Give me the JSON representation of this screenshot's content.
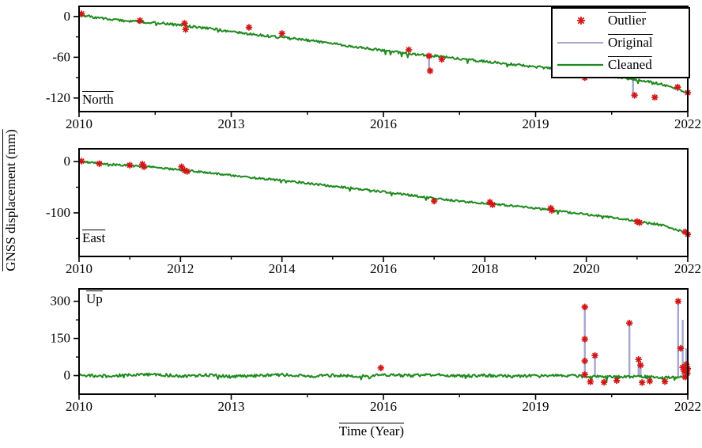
{
  "axes": {
    "ylabel": "GNSS displacement (mm)",
    "xlabel": "Time (Year)"
  },
  "colors": {
    "outlier": "#d21616",
    "original": "#a6a6d4",
    "cleaned": "#1e8a1e",
    "axis": "#000000"
  },
  "legend": {
    "items": [
      {
        "label": "Outlier"
      },
      {
        "label": "Original"
      },
      {
        "label": "Cleaned"
      }
    ]
  },
  "chart_data": [
    {
      "type": "line",
      "label": "North",
      "xlim": [
        2010,
        2022
      ],
      "ylim": [
        -140,
        15
      ],
      "yticks": [
        {
          "v": 0,
          "label": "0"
        },
        {
          "v": -60,
          "label": "-60"
        },
        {
          "v": -120,
          "label": "-120"
        }
      ],
      "yminor": [
        -30,
        -90
      ],
      "xticks": [
        {
          "v": 2010,
          "label": "2010"
        },
        {
          "v": 2013,
          "label": "2013"
        },
        {
          "v": 2016,
          "label": "2016"
        },
        {
          "v": 2019,
          "label": "2019"
        },
        {
          "v": 2022,
          "label": "2022"
        }
      ],
      "xminor": [
        2011.5,
        2014.5,
        2017.5,
        2020.5
      ],
      "noise": 1.8,
      "cleaned_anchors": [
        [
          2010,
          2
        ],
        [
          2010.5,
          -3
        ],
        [
          2011,
          -7
        ],
        [
          2011.5,
          -9
        ],
        [
          2012,
          -13
        ],
        [
          2012.5,
          -17
        ],
        [
          2013,
          -22
        ],
        [
          2013.5,
          -27
        ],
        [
          2014,
          -31
        ],
        [
          2014.5,
          -35
        ],
        [
          2015,
          -40
        ],
        [
          2015.5,
          -45
        ],
        [
          2016,
          -50
        ],
        [
          2016.5,
          -55
        ],
        [
          2017,
          -58
        ],
        [
          2017.5,
          -62
        ],
        [
          2018,
          -66
        ],
        [
          2018.5,
          -70
        ],
        [
          2019,
          -74
        ],
        [
          2019.5,
          -78
        ],
        [
          2020,
          -83
        ],
        [
          2020.5,
          -88
        ],
        [
          2021,
          -93
        ],
        [
          2021.5,
          -100
        ],
        [
          2022,
          -112
        ]
      ],
      "outliers": [
        [
          2010.05,
          4
        ],
        [
          2011.2,
          -6
        ],
        [
          2012.08,
          -10
        ],
        [
          2012.1,
          -19
        ],
        [
          2013.35,
          -16
        ],
        [
          2014.0,
          -25
        ],
        [
          2016.5,
          -49
        ],
        [
          2016.9,
          -58
        ],
        [
          2016.92,
          -80
        ],
        [
          2017.15,
          -63
        ],
        [
          2019.95,
          -71
        ],
        [
          2019.97,
          -90
        ],
        [
          2020.9,
          -86
        ],
        [
          2020.95,
          -116
        ],
        [
          2021.35,
          -119
        ],
        [
          2021.8,
          -104
        ],
        [
          2022.0,
          -112
        ]
      ],
      "original_spikes": [
        [
          2012.1,
          -11,
          -19
        ],
        [
          2016.9,
          -58,
          -80
        ],
        [
          2019.95,
          -72,
          -90
        ],
        [
          2020.92,
          -88,
          -114
        ],
        [
          2021.8,
          -100,
          -110
        ]
      ]
    },
    {
      "type": "line",
      "label": "East",
      "xlim": [
        2010,
        2022
      ],
      "ylim": [
        -185,
        25
      ],
      "yticks": [
        {
          "v": 0,
          "label": "0"
        },
        {
          "v": -100,
          "label": "-100"
        }
      ],
      "yminor": [
        -50,
        -150
      ],
      "xticks": [
        {
          "v": 2010,
          "label": "2010"
        },
        {
          "v": 2012,
          "label": "2012"
        },
        {
          "v": 2014,
          "label": "2014"
        },
        {
          "v": 2016,
          "label": "2016"
        },
        {
          "v": 2018,
          "label": "2018"
        },
        {
          "v": 2020,
          "label": "2020"
        },
        {
          "v": 2022,
          "label": "2022"
        }
      ],
      "xminor": [
        2011,
        2013,
        2015,
        2017,
        2019,
        2021
      ],
      "noise": 2.0,
      "cleaned_anchors": [
        [
          2010,
          0
        ],
        [
          2010.5,
          -4
        ],
        [
          2011,
          -8
        ],
        [
          2011.5,
          -11
        ],
        [
          2012,
          -16
        ],
        [
          2012.5,
          -21
        ],
        [
          2013,
          -27
        ],
        [
          2013.5,
          -32
        ],
        [
          2014,
          -37
        ],
        [
          2014.5,
          -42
        ],
        [
          2015,
          -48
        ],
        [
          2015.5,
          -53
        ],
        [
          2016,
          -59
        ],
        [
          2016.5,
          -65
        ],
        [
          2017,
          -72
        ],
        [
          2017.5,
          -77
        ],
        [
          2018,
          -81
        ],
        [
          2018.5,
          -86
        ],
        [
          2019,
          -91
        ],
        [
          2019.5,
          -97
        ],
        [
          2020,
          -103
        ],
        [
          2020.5,
          -109
        ],
        [
          2021,
          -116
        ],
        [
          2021.5,
          -124
        ],
        [
          2022,
          -140
        ]
      ],
      "outliers": [
        [
          2010.05,
          1
        ],
        [
          2010.4,
          -4
        ],
        [
          2011.0,
          -7
        ],
        [
          2011.25,
          -5
        ],
        [
          2011.28,
          -10
        ],
        [
          2012.02,
          -10
        ],
        [
          2012.08,
          -17
        ],
        [
          2012.13,
          -19
        ],
        [
          2017.0,
          -77
        ],
        [
          2018.1,
          -79
        ],
        [
          2018.15,
          -84
        ],
        [
          2019.3,
          -91
        ],
        [
          2019.32,
          -95
        ],
        [
          2021.0,
          -117
        ],
        [
          2021.05,
          -119
        ],
        [
          2021.95,
          -137
        ],
        [
          2022.0,
          -142
        ]
      ],
      "original_spikes": [
        [
          2011.26,
          -5,
          -10
        ],
        [
          2012.02,
          -10,
          -16
        ],
        [
          2018.13,
          -79,
          -84
        ],
        [
          2019.3,
          -91,
          -95
        ],
        [
          2021.98,
          -136,
          -143
        ]
      ]
    },
    {
      "type": "line",
      "label": "Up",
      "xlim": [
        2010,
        2022
      ],
      "ylim": [
        -75,
        350
      ],
      "yticks": [
        {
          "v": 300,
          "label": "300"
        },
        {
          "v": 150,
          "label": "150"
        },
        {
          "v": 0,
          "label": "0"
        }
      ],
      "yminor": [
        225,
        75
      ],
      "xticks": [
        {
          "v": 2010,
          "label": "2010"
        },
        {
          "v": 2013,
          "label": "2013"
        },
        {
          "v": 2016,
          "label": "2016"
        },
        {
          "v": 2019,
          "label": "2019"
        },
        {
          "v": 2022,
          "label": "2022"
        }
      ],
      "xminor": [
        2011.5,
        2014.5,
        2017.5,
        2020.5
      ],
      "noise": 6.0,
      "cleaned_anchors": [
        [
          2010,
          1
        ],
        [
          2010.5,
          -2
        ],
        [
          2011,
          3
        ],
        [
          2011.5,
          5
        ],
        [
          2012,
          -2
        ],
        [
          2012.5,
          2
        ],
        [
          2013,
          -4
        ],
        [
          2013.5,
          0
        ],
        [
          2014,
          3
        ],
        [
          2014.5,
          -2
        ],
        [
          2015,
          1
        ],
        [
          2015.5,
          -3
        ],
        [
          2016,
          2
        ],
        [
          2016.5,
          0
        ],
        [
          2017,
          3
        ],
        [
          2017.5,
          -2
        ],
        [
          2018,
          1
        ],
        [
          2018.5,
          -3
        ],
        [
          2019,
          0
        ],
        [
          2019.5,
          2
        ],
        [
          2020,
          -4
        ],
        [
          2020.5,
          -6
        ],
        [
          2021,
          -4
        ],
        [
          2021.5,
          -8
        ],
        [
          2022,
          -5
        ]
      ],
      "outliers": [
        [
          2015.95,
          31
        ],
        [
          2019.97,
          277
        ],
        [
          2019.97,
          147
        ],
        [
          2019.97,
          59
        ],
        [
          2019.97,
          4
        ],
        [
          2020.08,
          -25
        ],
        [
          2020.17,
          81
        ],
        [
          2020.35,
          -27
        ],
        [
          2020.6,
          -20
        ],
        [
          2020.85,
          212
        ],
        [
          2021.03,
          65
        ],
        [
          2021.07,
          42
        ],
        [
          2021.1,
          -28
        ],
        [
          2021.25,
          -22
        ],
        [
          2021.55,
          -24
        ],
        [
          2021.81,
          300
        ],
        [
          2021.86,
          110
        ],
        [
          2021.9,
          33
        ],
        [
          2021.93,
          18
        ],
        [
          2021.95,
          -6
        ],
        [
          2021.97,
          45
        ],
        [
          2021.99,
          10
        ],
        [
          2022.0,
          28
        ]
      ],
      "original_spikes": [
        [
          2019.97,
          2,
          277
        ],
        [
          2020.17,
          -2,
          81
        ],
        [
          2020.85,
          -5,
          212
        ],
        [
          2021.03,
          -6,
          65
        ],
        [
          2021.07,
          -5,
          42
        ],
        [
          2021.81,
          -8,
          300
        ],
        [
          2021.9,
          -10,
          225
        ],
        [
          2021.97,
          -12,
          110
        ]
      ]
    }
  ]
}
